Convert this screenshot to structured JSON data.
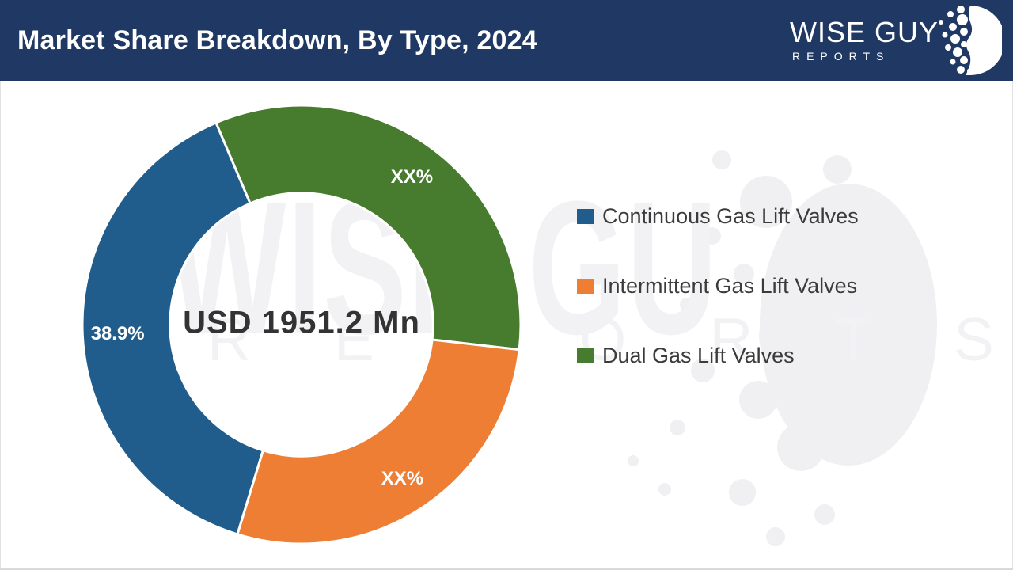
{
  "header": {
    "title": "Market Share Breakdown, By Type, 2024",
    "logo": {
      "line1": "WISE GUY",
      "line2": "REPORTS"
    }
  },
  "chart_data": {
    "type": "donut",
    "title": "Market Share Breakdown, By Type, 2024",
    "center_label": "USD 1951.2 Mn",
    "start_angle_deg": 197,
    "inner_radius_ratio": 0.6,
    "label_color": "#ffffff",
    "legend_position": "right",
    "segments": [
      {
        "name": "Continuous Gas Lift Valves",
        "label": "38.9%",
        "value_pct": 38.9,
        "color": "#205d8c"
      },
      {
        "name": "Dual Gas Lift Valves",
        "label": "XX%",
        "value_pct": 33.2,
        "color": "#477b2d"
      },
      {
        "name": "Intermittent Gas Lift Valves",
        "label": "XX%",
        "value_pct": 27.9,
        "color": "#ee7e33"
      }
    ]
  },
  "legend": {
    "items": [
      {
        "label": "Continuous Gas Lift Valves",
        "color": "#205d8c"
      },
      {
        "label": "Intermittent Gas Lift Valves",
        "color": "#ee7e33"
      },
      {
        "label": "Dual Gas Lift Valves",
        "color": "#477b2d"
      }
    ]
  },
  "watermark": {
    "line1": "WISE GU",
    "line2": "R E P O R T S"
  },
  "colors": {
    "header_bg": "#203864",
    "title_text": "#ffffff",
    "center_text": "#333333",
    "watermark": "#f2f2f5"
  }
}
